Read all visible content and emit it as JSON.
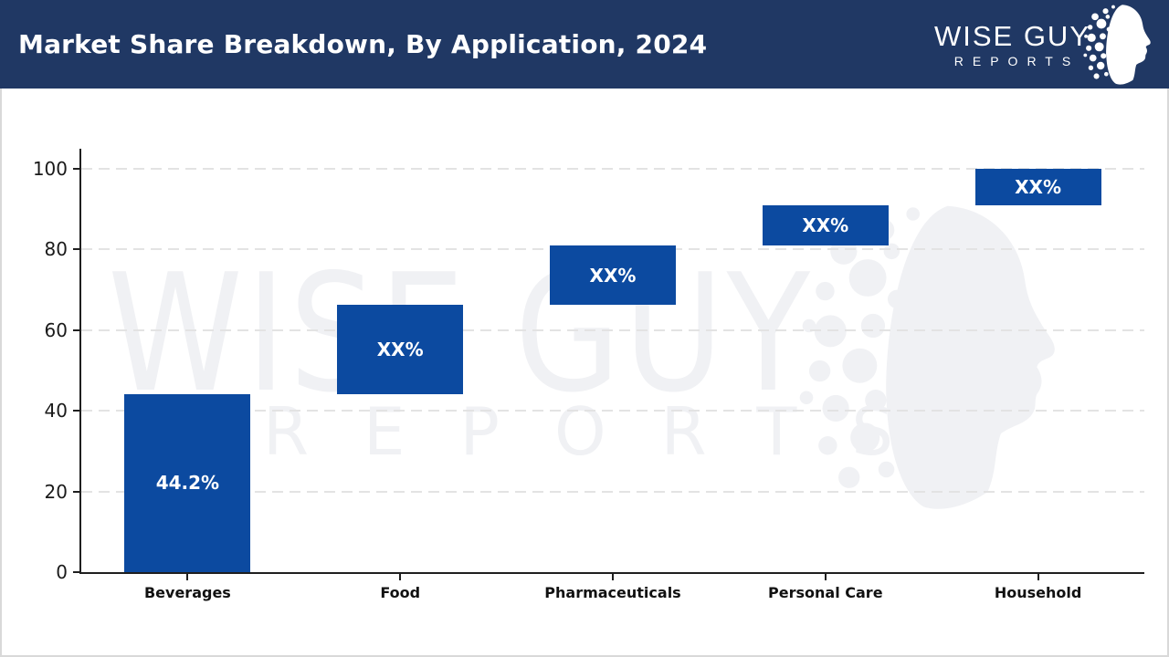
{
  "header": {
    "title": "Market Share Breakdown, By Application, 2024",
    "bg_color": "#203864",
    "logo": {
      "line1": "WISE GUY",
      "line2": "REPORTS"
    }
  },
  "watermark": {
    "line1": "WISE GUY",
    "line2": "REPORTS"
  },
  "chart_data": {
    "type": "bar",
    "subtype": "waterfall",
    "title": "Market Share Breakdown, By Application, 2024",
    "categories": [
      "Beverages",
      "Food",
      "Pharmaceuticals",
      "Personal Care",
      "Household"
    ],
    "segments": [
      {
        "category": "Beverages",
        "start": 0,
        "end": 44.2,
        "label": "44.2%"
      },
      {
        "category": "Food",
        "start": 44.2,
        "end": 66.2,
        "label": "XX%"
      },
      {
        "category": "Pharmaceuticals",
        "start": 66.2,
        "end": 81,
        "label": "XX%"
      },
      {
        "category": "Personal Care",
        "start": 81,
        "end": 91,
        "label": "XX%"
      },
      {
        "category": "Household",
        "start": 91,
        "end": 100,
        "label": "XX%"
      }
    ],
    "yticks": [
      0,
      20,
      40,
      60,
      80,
      100
    ],
    "ylim": [
      0,
      105
    ],
    "xlabel": "",
    "ylabel": "",
    "grid": "horizontal-dashed",
    "legend": "none",
    "colors": {
      "bar": "#0c4aa0",
      "bar_label": "#ffffff",
      "axis": "#1f1f1f",
      "grid": "#e3e3e3",
      "tick_label": "#1a1a1a"
    }
  }
}
